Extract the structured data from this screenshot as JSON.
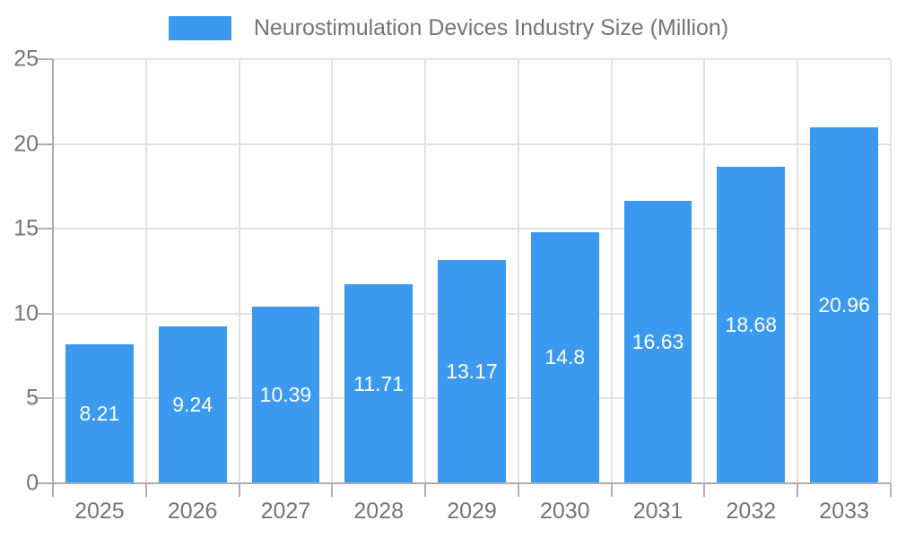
{
  "chart_data": {
    "type": "bar",
    "title": "Neurostimulation Devices Industry Size (Million)",
    "categories": [
      "2025",
      "2026",
      "2027",
      "2028",
      "2029",
      "2030",
      "2031",
      "2032",
      "2033"
    ],
    "values": [
      8.21,
      9.24,
      10.39,
      11.71,
      13.17,
      14.8,
      16.63,
      18.68,
      20.96
    ],
    "value_labels": [
      "8.21",
      "9.24",
      "10.39",
      "11.71",
      "13.17",
      "14.8",
      "16.63",
      "18.68",
      "20.96"
    ],
    "xlabel": "",
    "ylabel": "",
    "ylim": [
      0,
      25
    ],
    "yticks": [
      0,
      5,
      10,
      15,
      20,
      25
    ],
    "grid": true,
    "legend_position": "top-center",
    "colors": {
      "bar": "#3B9AF0",
      "value_label": "#ffffff",
      "axis_text": "#757575",
      "gridline": "#e2e2e2",
      "axis_line": "#adadad",
      "tick": "#b0b0b0",
      "background": "#ffffff"
    }
  }
}
